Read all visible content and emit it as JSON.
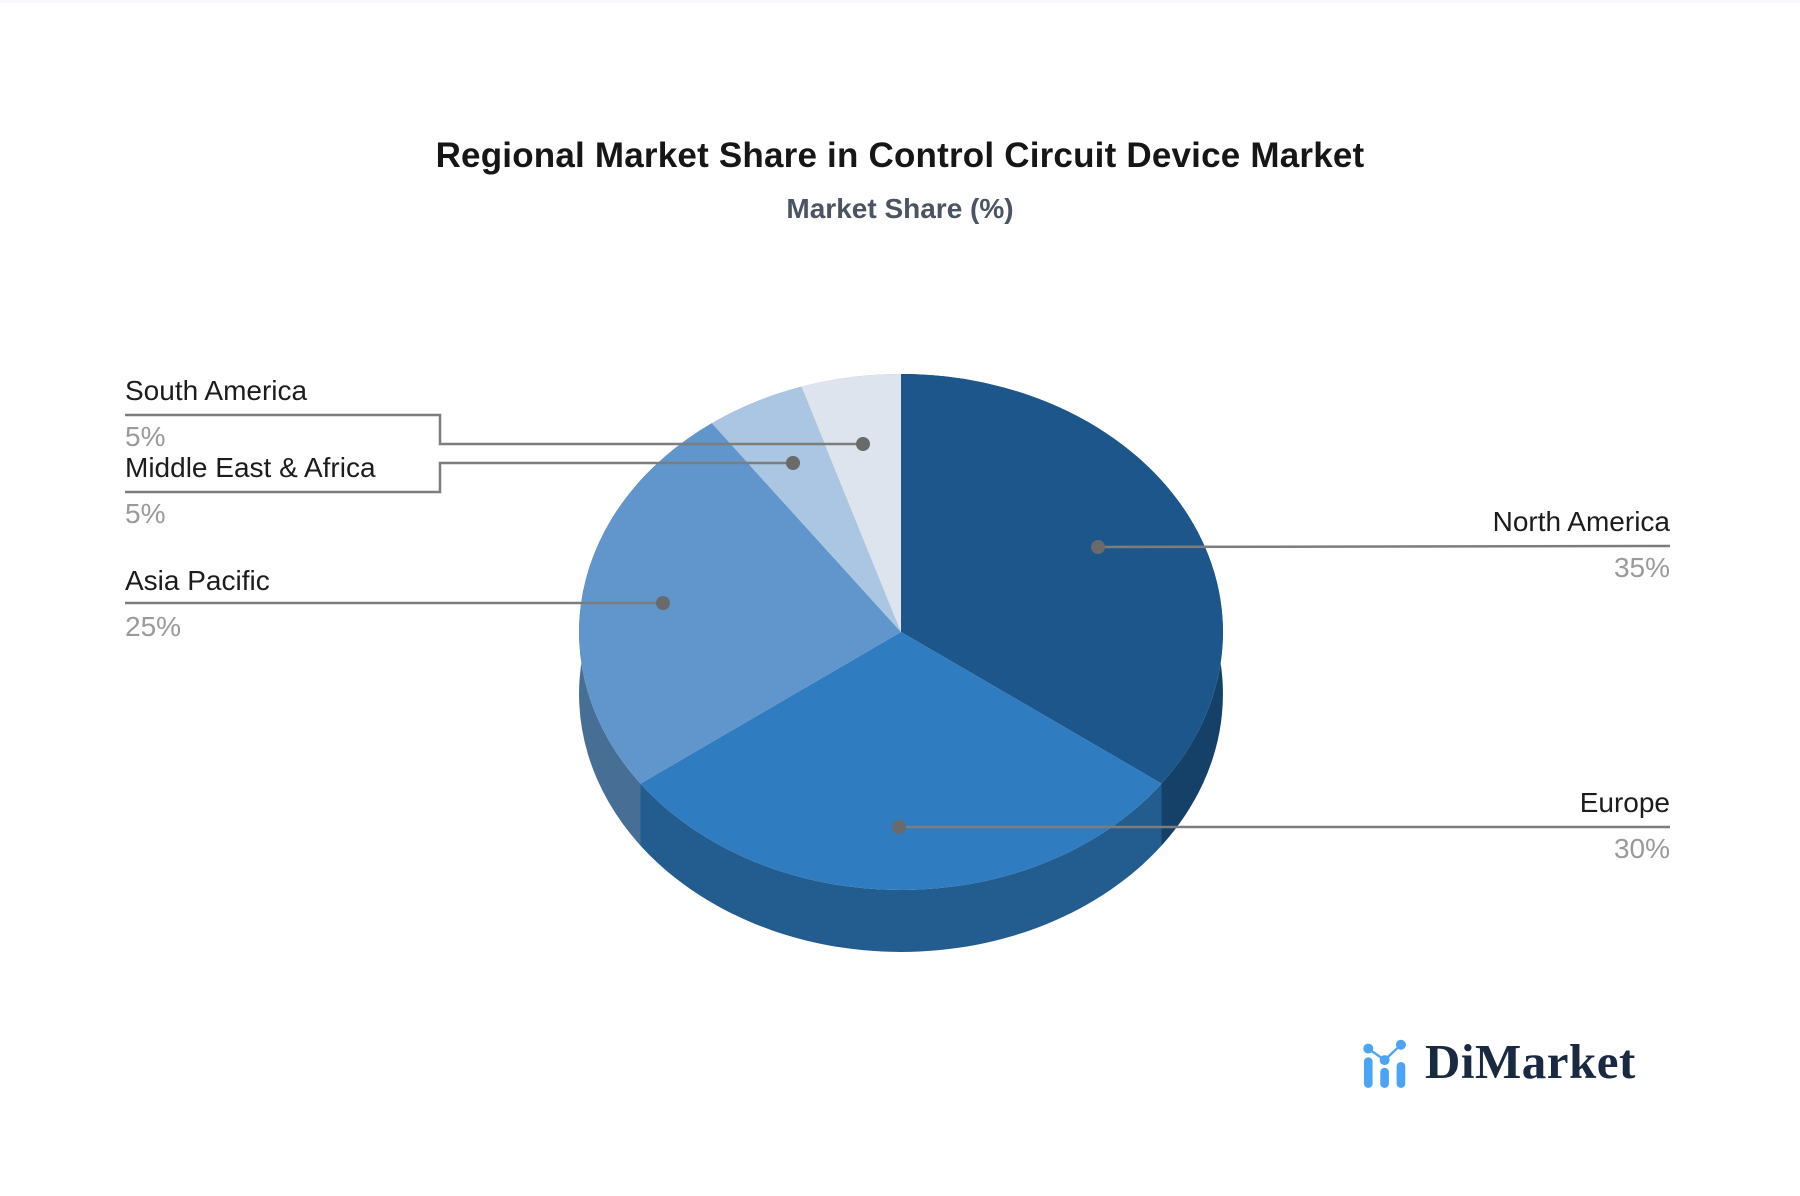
{
  "header": {
    "title": "Regional Market Share in Control Circuit Device Market",
    "subtitle": "Market Share (%)"
  },
  "chart_data": {
    "type": "pie",
    "style": "3d",
    "title": "Regional Market Share in Control Circuit Device Market",
    "subtitle": "Market Share (%)",
    "unit": "%",
    "direction": "clockwise",
    "start_angle_deg": 0,
    "labels": [
      "North America",
      "Europe",
      "Asia Pacific",
      "Middle East & Africa",
      "South America"
    ],
    "values": [
      35,
      30,
      25,
      5,
      5
    ],
    "colors": [
      "#1d568b",
      "#2f7cc1",
      "#6096cb",
      "#aac6e2",
      "#dde4ee"
    ],
    "legend_position": "callout-labels",
    "grid": false
  },
  "callouts": [
    {
      "label": "North America",
      "value_text": "35%"
    },
    {
      "label": "Europe",
      "value_text": "30%"
    },
    {
      "label": "Asia Pacific",
      "value_text": "25%"
    },
    {
      "label": "Middle East & Africa",
      "value_text": "5%"
    },
    {
      "label": "South America",
      "value_text": "5%"
    }
  ],
  "colors": {
    "title": "#161616",
    "subtitle": "#4a5462",
    "label_text": "#1c1c1c",
    "percent_text": "#9a9a9a",
    "callout_line": "#7d7d7d",
    "callout_dot": "#6a6a6a",
    "logo_accent": "#4ba4f4",
    "logo_text": "#1a2942"
  },
  "logo": {
    "text": "DiMarket",
    "icon": "bar-chart-logo-icon"
  }
}
